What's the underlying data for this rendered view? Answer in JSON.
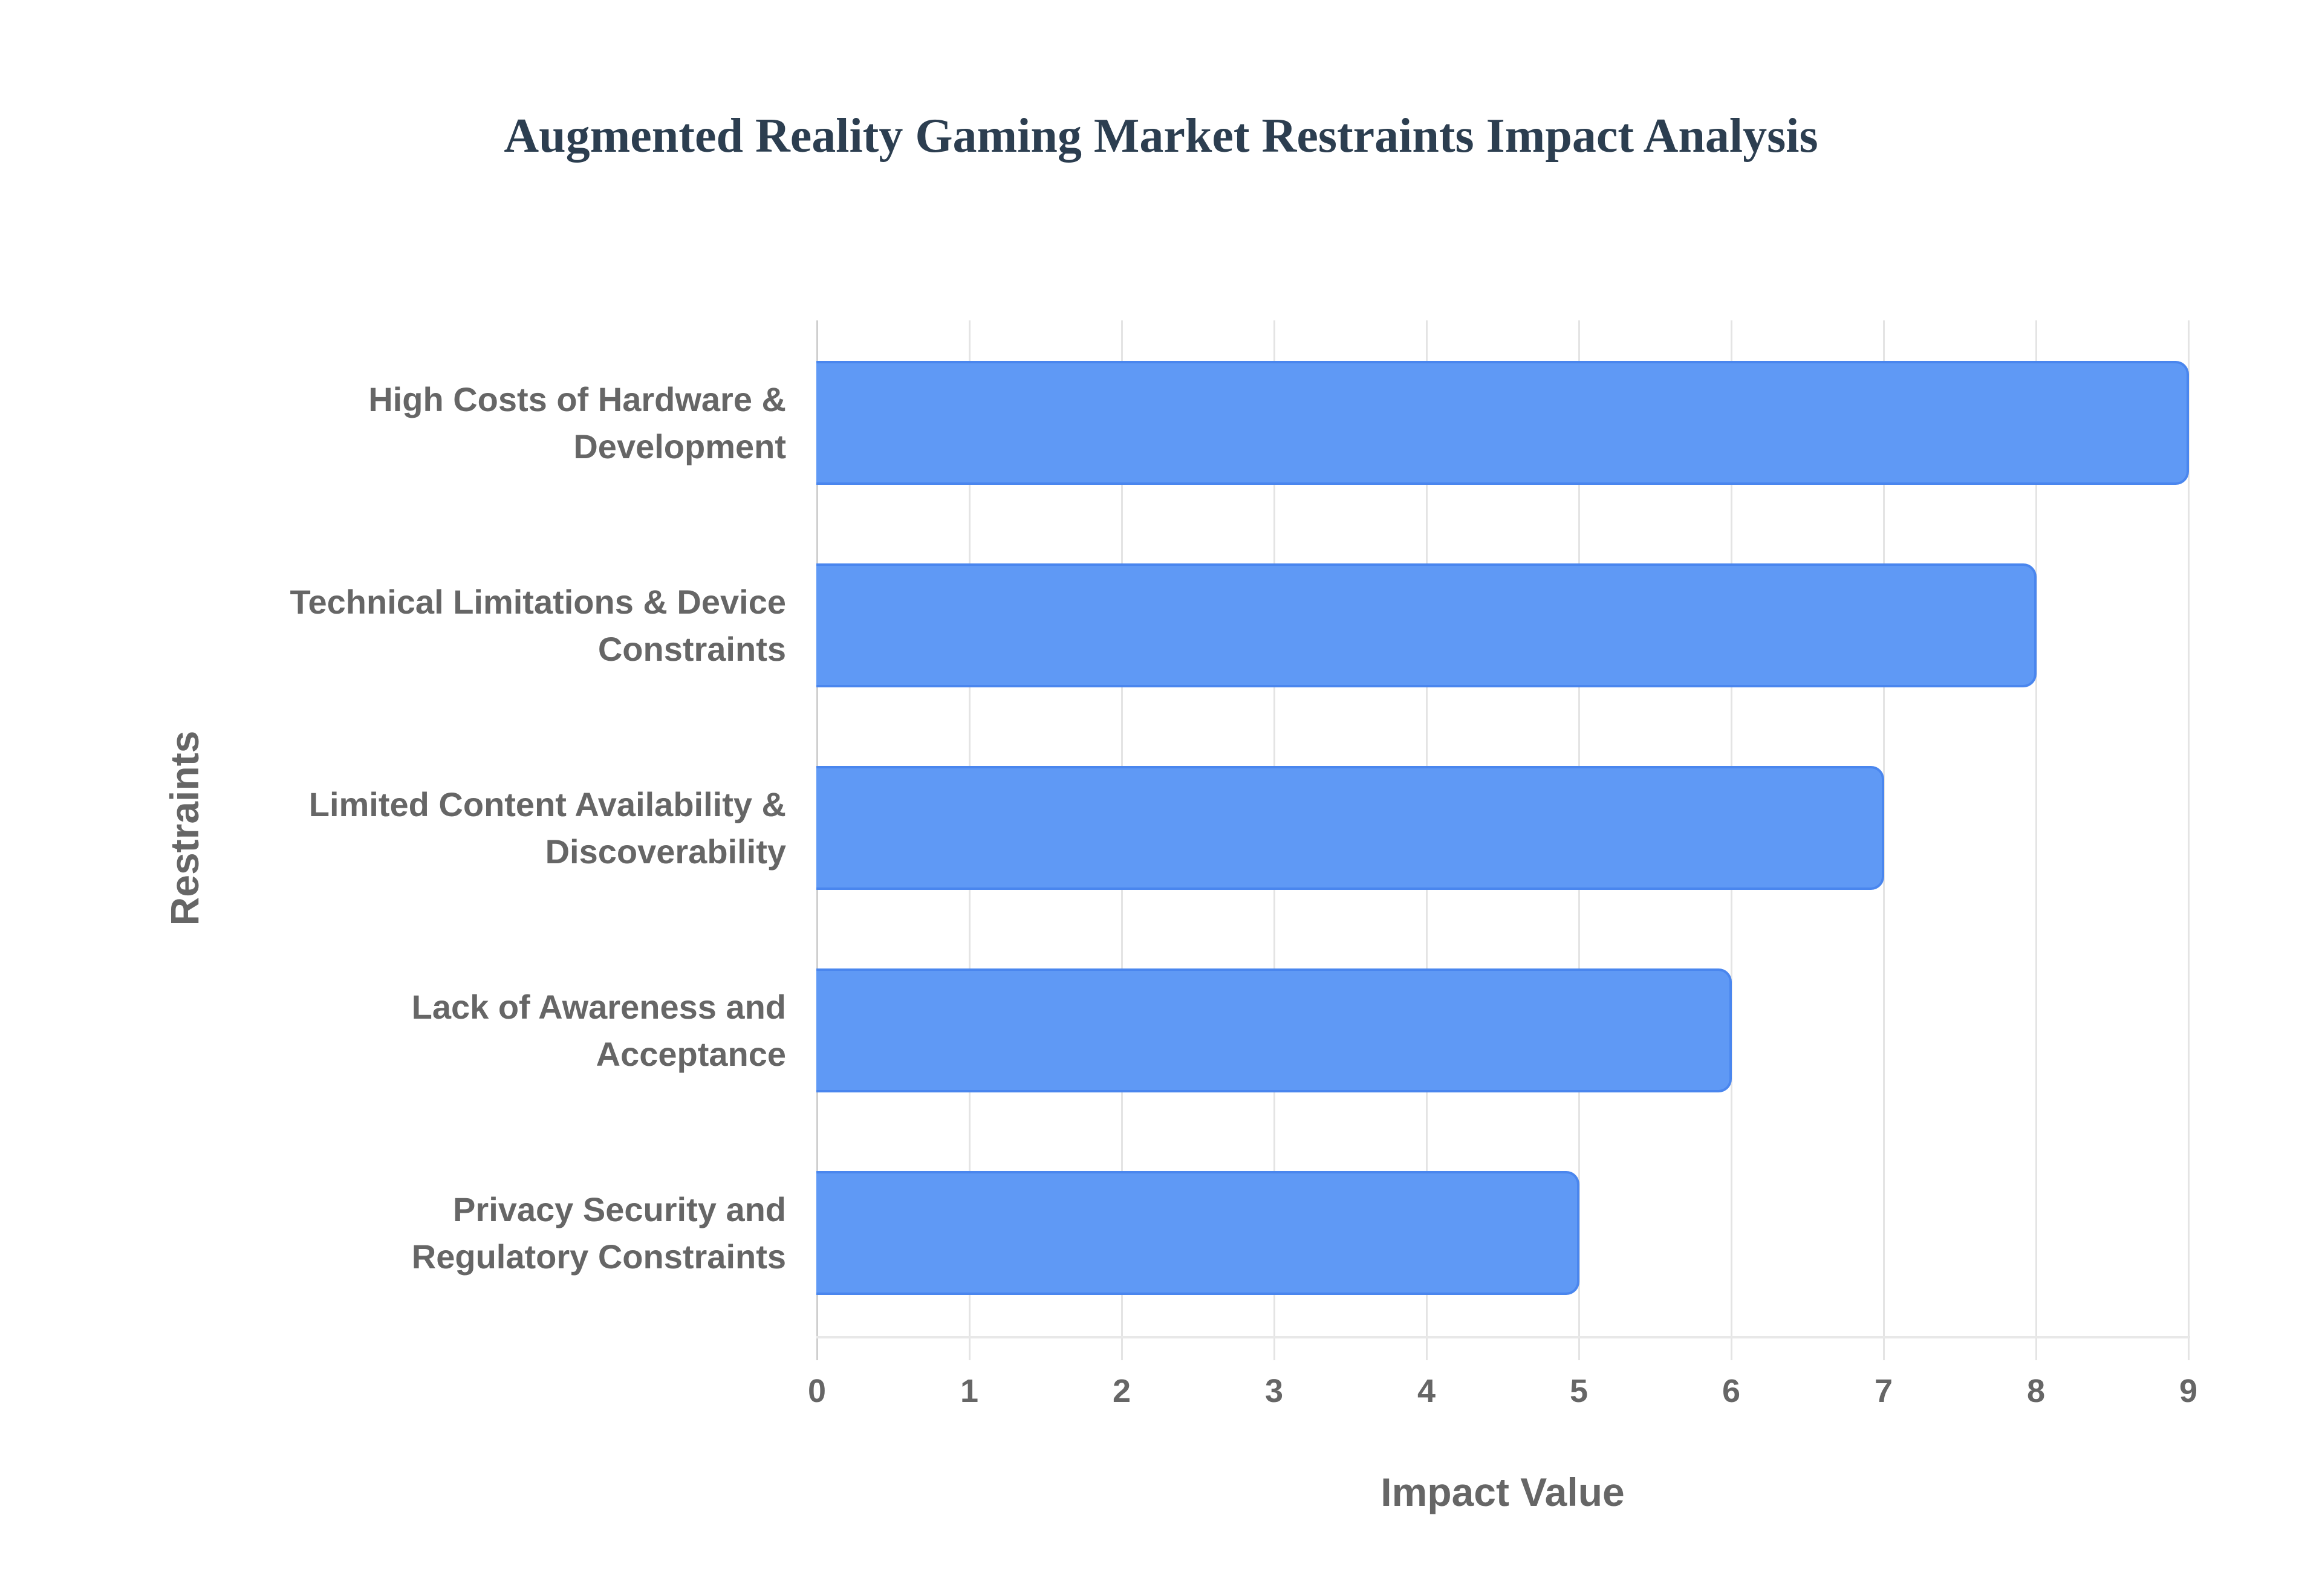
{
  "title": "Augmented Reality Gaming Market Restraints Impact Analysis",
  "axes": {
    "x_title": "Impact Value",
    "y_title": "Restraints",
    "x_ticks": [
      "0",
      "1",
      "2",
      "3",
      "4",
      "5",
      "6",
      "7",
      "8",
      "9"
    ]
  },
  "bars": [
    {
      "label_line1": "High Costs of Hardware &",
      "label_line2": "Development",
      "value": 9
    },
    {
      "label_line1": "Technical Limitations & Device",
      "label_line2": "Constraints",
      "value": 8
    },
    {
      "label_line1": "Limited Content Availability &",
      "label_line2": "Discoverability",
      "value": 7
    },
    {
      "label_line1": "Lack of Awareness and",
      "label_line2": "Acceptance",
      "value": 6
    },
    {
      "label_line1": "Privacy Security and",
      "label_line2": "Regulatory Constraints",
      "value": 5
    }
  ],
  "colors": {
    "bar_fill": "#5f99f5",
    "bar_border": "#4a86ee",
    "title": "#2c3e50",
    "axis_text": "#666666",
    "grid": "#e4e4e4"
  },
  "chart_data": {
    "type": "bar",
    "orientation": "horizontal",
    "title": "Augmented Reality Gaming Market Restraints Impact Analysis",
    "categories": [
      "High Costs of Hardware & Development",
      "Technical Limitations & Device Constraints",
      "Limited Content Availability & Discoverability",
      "Lack of Awareness and Acceptance",
      "Privacy Security and Regulatory Constraints"
    ],
    "values": [
      9,
      8,
      7,
      6,
      5
    ],
    "xlabel": "Impact Value",
    "ylabel": "Restraints",
    "xlim": [
      0,
      9
    ],
    "x_ticks": [
      0,
      1,
      2,
      3,
      4,
      5,
      6,
      7,
      8,
      9
    ],
    "grid": {
      "vertical": true,
      "horizontal": false
    },
    "legend": null
  }
}
